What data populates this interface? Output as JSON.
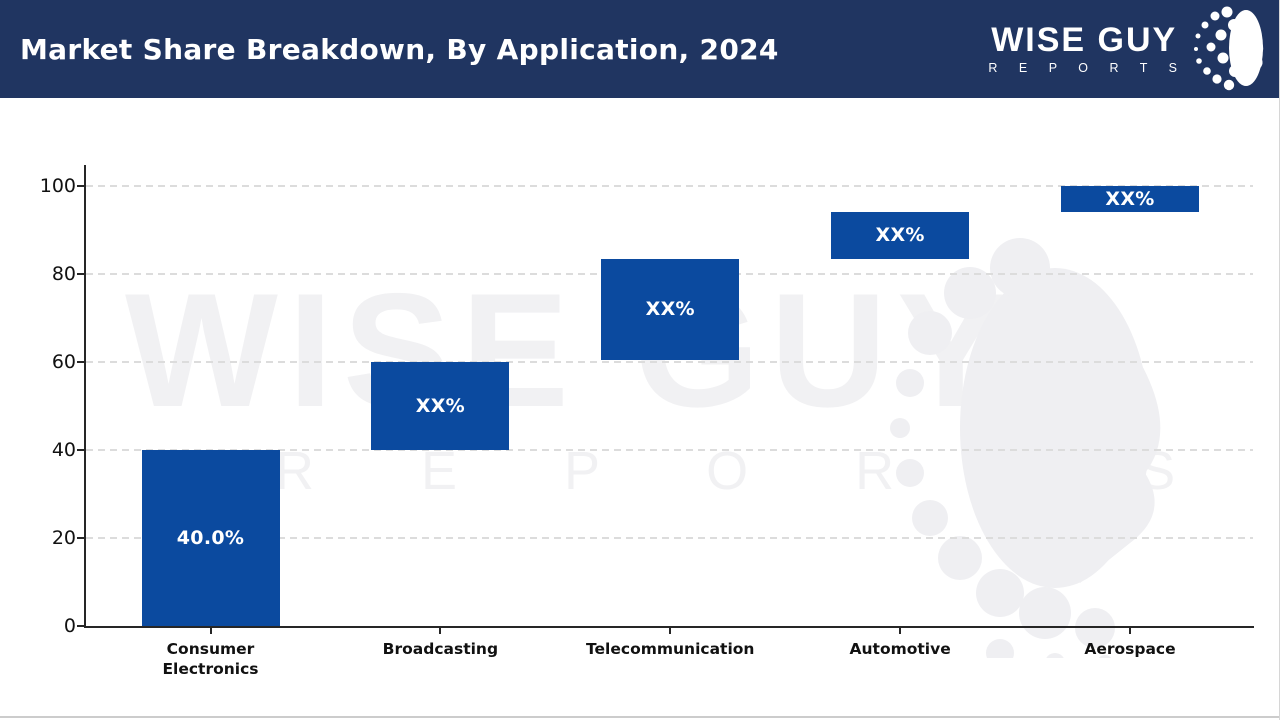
{
  "header": {
    "title": "Market Share Breakdown, By Application, 2024",
    "bg_color": "#203561",
    "logo": {
      "line1": "WISE GUY",
      "line2": "R E P O R T S"
    }
  },
  "watermark": {
    "line1": "WISE GUY",
    "line2": "R E P O R T S"
  },
  "chart_data": {
    "type": "bar",
    "subtype": "waterfall",
    "title": "Market Share Breakdown, By Application, 2024",
    "xlabel": "",
    "ylabel": "",
    "ylim": [
      0,
      100
    ],
    "yticks": [
      0,
      20,
      40,
      60,
      80,
      100
    ],
    "grid": "horizontal-dashed",
    "legend": "none",
    "bar_color": "#0b4a9f",
    "bar_label_color": "#ffffff",
    "categories": [
      "Consumer Electronics",
      "Broadcasting",
      "Telecommunication",
      "Automotive",
      "Aerospace"
    ],
    "segments": [
      {
        "category": "Consumer Electronics",
        "start": 0,
        "end": 40,
        "label": "40.0%"
      },
      {
        "category": "Broadcasting",
        "start": 40,
        "end": 60,
        "label": "XX%"
      },
      {
        "category": "Telecommunication",
        "start": 60.5,
        "end": 83.5,
        "label": "XX%"
      },
      {
        "category": "Automotive",
        "start": 83.5,
        "end": 94,
        "label": "XX%"
      },
      {
        "category": "Aerospace",
        "start": 94,
        "end": 100,
        "label": "XX%"
      }
    ]
  }
}
